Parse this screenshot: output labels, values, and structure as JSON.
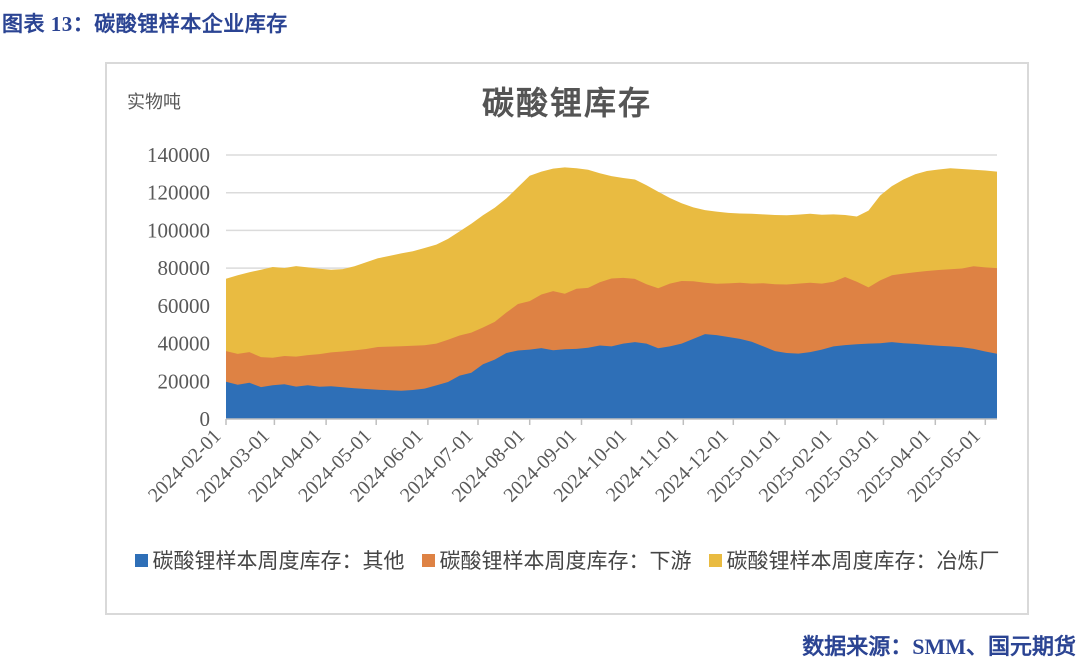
{
  "page": {
    "heading": "图表 13：碳酸锂样本企业库存",
    "source_note": "数据来源：SMM、国元期货"
  },
  "chart": {
    "title": "碳酸锂库存",
    "unit_label": "实物吨",
    "colors": {
      "heading_text": "#2B4493",
      "chart_text": "#595959",
      "gridline": "#DBDBDB",
      "axis_line": "#BFBFBF",
      "box_border": "#D9D9D9",
      "series_other": "#2E6FB7",
      "series_downstream": "#DE8244",
      "series_smelter": "#E9BB41"
    }
  },
  "chart_data": {
    "type": "area",
    "stacked": true,
    "title": "碳酸锂库存",
    "ylabel": "实物吨",
    "xlabel": "",
    "ylim": [
      0,
      140000
    ],
    "grid": true,
    "legend_position": "bottom",
    "y_ticks": [
      0,
      20000,
      40000,
      60000,
      80000,
      100000,
      120000,
      140000
    ],
    "x_tick_labels": [
      "2024-02-01",
      "2024-03-01",
      "2024-04-01",
      "2024-05-01",
      "2024-06-01",
      "2024-07-01",
      "2024-08-01",
      "2024-09-01",
      "2024-10-01",
      "2024-11-01",
      "2024-12-01",
      "2025-01-01",
      "2025-02-01",
      "2025-03-01",
      "2025-04-01",
      "2025-05-01"
    ],
    "dates": [
      "2024-02-01",
      "2024-02-08",
      "2024-02-15",
      "2024-02-22",
      "2024-02-29",
      "2024-03-07",
      "2024-03-14",
      "2024-03-21",
      "2024-03-28",
      "2024-04-04",
      "2024-04-11",
      "2024-04-18",
      "2024-04-25",
      "2024-05-02",
      "2024-05-09",
      "2024-05-16",
      "2024-05-23",
      "2024-05-30",
      "2024-06-06",
      "2024-06-13",
      "2024-06-20",
      "2024-06-27",
      "2024-07-04",
      "2024-07-11",
      "2024-07-18",
      "2024-07-25",
      "2024-08-01",
      "2024-08-08",
      "2024-08-15",
      "2024-08-22",
      "2024-08-29",
      "2024-09-05",
      "2024-09-12",
      "2024-09-19",
      "2024-09-26",
      "2024-10-03",
      "2024-10-10",
      "2024-10-17",
      "2024-10-24",
      "2024-10-31",
      "2024-11-07",
      "2024-11-14",
      "2024-11-21",
      "2024-11-28",
      "2024-12-05",
      "2024-12-12",
      "2024-12-19",
      "2024-12-26",
      "2025-01-02",
      "2025-01-09",
      "2025-01-16",
      "2025-01-23",
      "2025-01-30",
      "2025-02-06",
      "2025-02-13",
      "2025-02-20",
      "2025-02-27",
      "2025-03-06",
      "2025-03-13",
      "2025-03-20",
      "2025-03-27",
      "2025-04-03",
      "2025-04-10",
      "2025-04-17",
      "2025-04-24",
      "2025-05-01",
      "2025-05-08"
    ],
    "series": [
      {
        "name": "碳酸锂样本周度库存：其他",
        "color": "#2E6FB7",
        "values": [
          19800,
          18200,
          19200,
          16900,
          17900,
          18400,
          17200,
          17900,
          17100,
          17400,
          16800,
          16300,
          15900,
          15500,
          15200,
          15000,
          15400,
          16100,
          17800,
          19600,
          23000,
          24500,
          29000,
          31500,
          35000,
          36300,
          36800,
          37600,
          36500,
          37000,
          37200,
          37800,
          39000,
          38500,
          40000,
          40800,
          40000,
          37500,
          38500,
          40000,
          42500,
          45000,
          44500,
          43500,
          42500,
          41000,
          38500,
          36000,
          35000,
          34700,
          35500,
          36800,
          38500,
          39200,
          39600,
          40000,
          40200,
          40800,
          40200,
          39800,
          39300,
          38800,
          38500,
          38000,
          37200,
          35800,
          34600
        ]
      },
      {
        "name": "碳酸锂样本周度库存：下游",
        "color": "#DE8244",
        "values": [
          16200,
          16300,
          16300,
          15900,
          14600,
          15000,
          15900,
          16000,
          17300,
          17900,
          19000,
          20100,
          21200,
          22700,
          23200,
          23600,
          23400,
          23000,
          22200,
          22400,
          21300,
          21300,
          19500,
          20000,
          21500,
          24700,
          25700,
          28400,
          31300,
          29400,
          31900,
          31700,
          33500,
          36000,
          34800,
          33500,
          31500,
          31800,
          33300,
          33200,
          30500,
          27300,
          27200,
          28400,
          29800,
          30800,
          33500,
          35500,
          36300,
          37100,
          36800,
          35000,
          34300,
          36100,
          33200,
          29800,
          33300,
          35400,
          36900,
          38000,
          39200,
          40200,
          40900,
          41800,
          43800,
          44600,
          45400
        ]
      },
      {
        "name": "碳酸锂样本周度库存：冶炼厂",
        "color": "#E9BB41",
        "values": [
          38400,
          41700,
          42300,
          46400,
          48100,
          46700,
          48000,
          46500,
          45300,
          43800,
          43700,
          44600,
          46000,
          47000,
          48100,
          49200,
          50200,
          51600,
          52500,
          53500,
          55200,
          57700,
          59500,
          60500,
          60500,
          62000,
          66500,
          65200,
          65000,
          67000,
          63900,
          62700,
          57800,
          54300,
          53000,
          52700,
          52500,
          51200,
          45400,
          41200,
          39200,
          38500,
          38300,
          37400,
          36700,
          37000,
          36500,
          36700,
          36700,
          36600,
          36500,
          36500,
          35700,
          32900,
          34600,
          40700,
          45000,
          47300,
          49900,
          52000,
          53000,
          53300,
          53600,
          52800,
          51200,
          51400,
          51200
        ]
      }
    ]
  }
}
